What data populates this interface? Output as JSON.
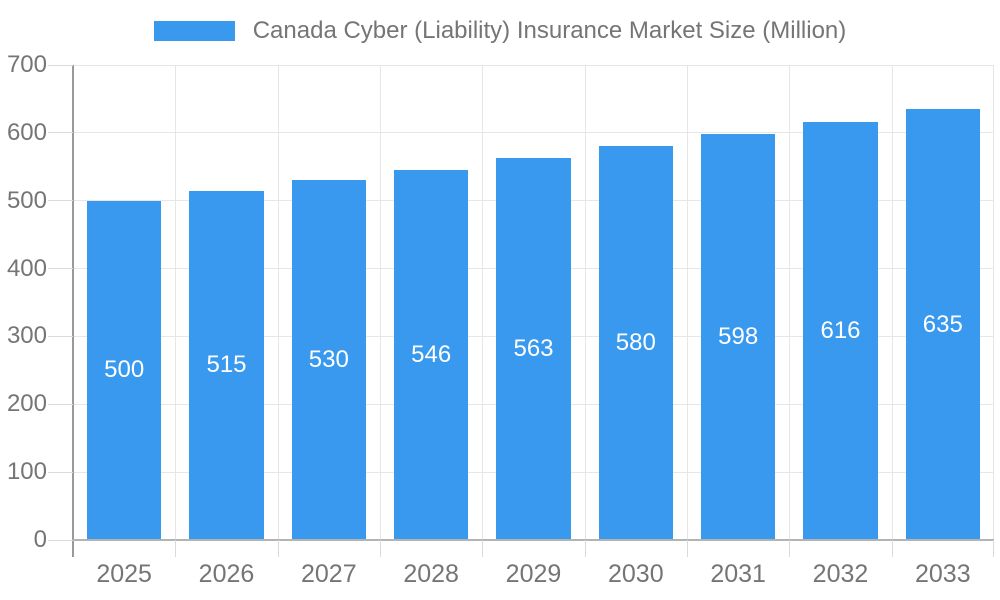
{
  "chart_data": {
    "type": "bar",
    "title": "Canada Cyber (Liability) Insurance Market Size (Million)",
    "legend": [
      "Canada Cyber (Liability) Insurance Market Size (Million)"
    ],
    "legend_position": "top",
    "categories": [
      "2025",
      "2026",
      "2027",
      "2028",
      "2029",
      "2030",
      "2031",
      "2032",
      "2033"
    ],
    "values": [
      500,
      515,
      530,
      546,
      563,
      580,
      598,
      616,
      635
    ],
    "value_labels": [
      "500",
      "515",
      "530",
      "546",
      "563",
      "580",
      "598",
      "616",
      "635"
    ],
    "xlabel": "",
    "ylabel": "",
    "ylim": [
      0,
      700
    ],
    "y_ticks": [
      0,
      100,
      200,
      300,
      400,
      500,
      600,
      700
    ],
    "grid": true
  },
  "colors": {
    "accent": "#3999ee",
    "bg": "#ffffff",
    "grid": "#e6e6e6",
    "tick": "#dadada",
    "axis": "#999999",
    "baseline": "#b3b3b3",
    "label": "#757575",
    "value-label": "#ffffff"
  }
}
